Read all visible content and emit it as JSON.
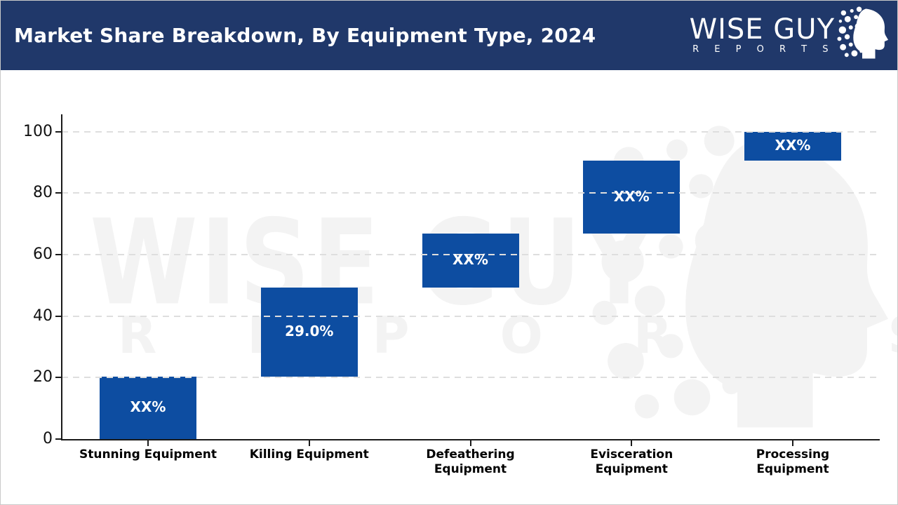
{
  "header": {
    "title": "Market Share Breakdown, By Equipment Type, 2024",
    "logo": {
      "line1": "WISE GUY",
      "line2": "R E P O R T S"
    }
  },
  "watermark": {
    "line1": "WISE GUY",
    "line2": "R E P O R T S"
  },
  "icons": {
    "logo_head": "dotted-head-profile",
    "watermark_head": "dotted-head-profile"
  },
  "colors": {
    "header_bg": "#20386a",
    "bar": "#0d4da1",
    "bar_label": "#ffffff",
    "gridline": "#dedede",
    "axis": "#1a1a1a",
    "watermark": "#f3f3f3",
    "page_border": "#c9c9c9"
  },
  "chart_data": {
    "type": "bar",
    "variant": "waterfall",
    "title": "Market Share Breakdown, By Equipment Type, 2024",
    "categories": [
      "Stunning Equipment",
      "Killing Equipment",
      "Defeathering Equipment",
      "Evisceration Equipment",
      "Processing Equipment"
    ],
    "category_label_lines": [
      [
        "Stunning Equipment"
      ],
      [
        "Killing Equipment"
      ],
      [
        "Defeathering",
        "Equipment"
      ],
      [
        "Evisceration",
        "Equipment"
      ],
      [
        "Processing",
        "Equipment"
      ]
    ],
    "segments": [
      {
        "category": "Stunning Equipment",
        "start": 0,
        "end": 20.3,
        "value": 20.3,
        "label": "XX%"
      },
      {
        "category": "Killing Equipment",
        "start": 20.3,
        "end": 49.3,
        "value": 29.0,
        "label": "29.0%"
      },
      {
        "category": "Defeathering Equipment",
        "start": 49.3,
        "end": 66.8,
        "value": 17.5,
        "label": "XX%"
      },
      {
        "category": "Evisceration Equipment",
        "start": 66.8,
        "end": 90.5,
        "value": 23.7,
        "label": "XX%"
      },
      {
        "category": "Processing Equipment",
        "start": 90.5,
        "end": 100.0,
        "value": 9.5,
        "label": "XX%"
      }
    ],
    "y_ticks": [
      0,
      20,
      40,
      60,
      80,
      100
    ],
    "ylim": [
      0,
      100
    ],
    "xlabel": "",
    "ylabel": "",
    "grid": "horizontal-dashed",
    "legend": "none"
  }
}
